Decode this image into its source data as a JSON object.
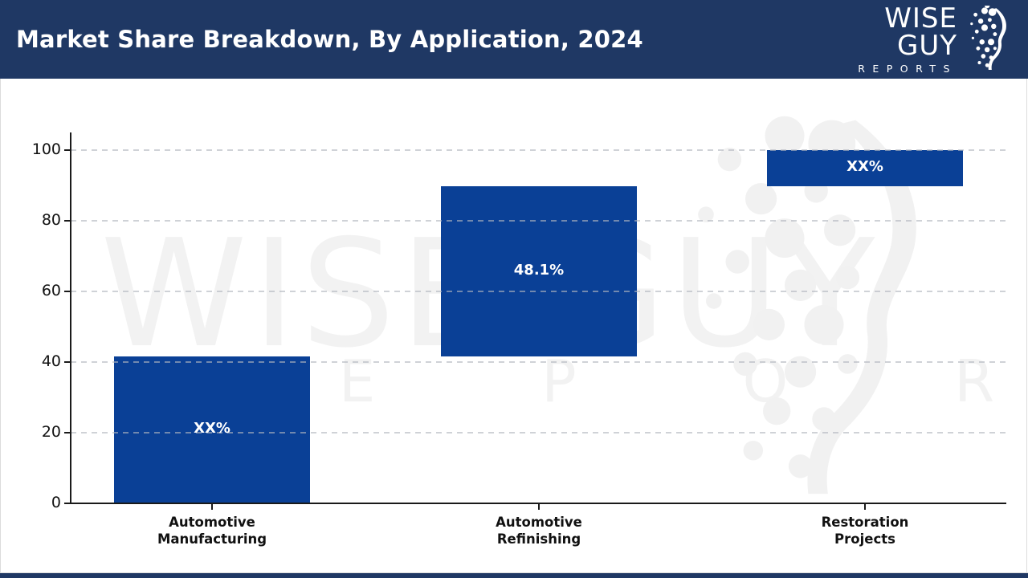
{
  "header": {
    "title": "Market Share Breakdown, By Application, 2024",
    "logo_line1": "WISE GUY",
    "logo_line2": "REPORTS"
  },
  "watermark": {
    "line1": "WISE GUY",
    "line2": "R E P O R T S"
  },
  "colors": {
    "header_bg": "#1F3864",
    "bar_blue": "#0A4096",
    "grid_gray": "#dcdcdc",
    "bottom_accent": "#1F3864"
  },
  "chart_data": {
    "type": "bar",
    "subtype": "stacked-waterfall",
    "title": "Market Share Breakdown, By Application, 2024",
    "categories": [
      "Automotive Manufacturing",
      "Automotive Refinishing",
      "Restoration Projects"
    ],
    "bars": [
      {
        "category_line1": "Automotive",
        "category_line2": "Manufacturing",
        "label": "XX%",
        "base": 0,
        "value": 41.5
      },
      {
        "category_line1": "Automotive",
        "category_line2": "Refinishing",
        "label": "48.1%",
        "base": 41.5,
        "value": 48.1
      },
      {
        "category_line1": "Restoration",
        "category_line2": "Projects",
        "label": "XX%",
        "base": 89.6,
        "value": 10.4
      }
    ],
    "yticks": [
      0,
      20,
      40,
      60,
      80,
      100
    ],
    "ylim": [
      0,
      105
    ],
    "xlabel": "",
    "ylabel": "",
    "grid": "horizontal-dashed",
    "legend": false
  }
}
